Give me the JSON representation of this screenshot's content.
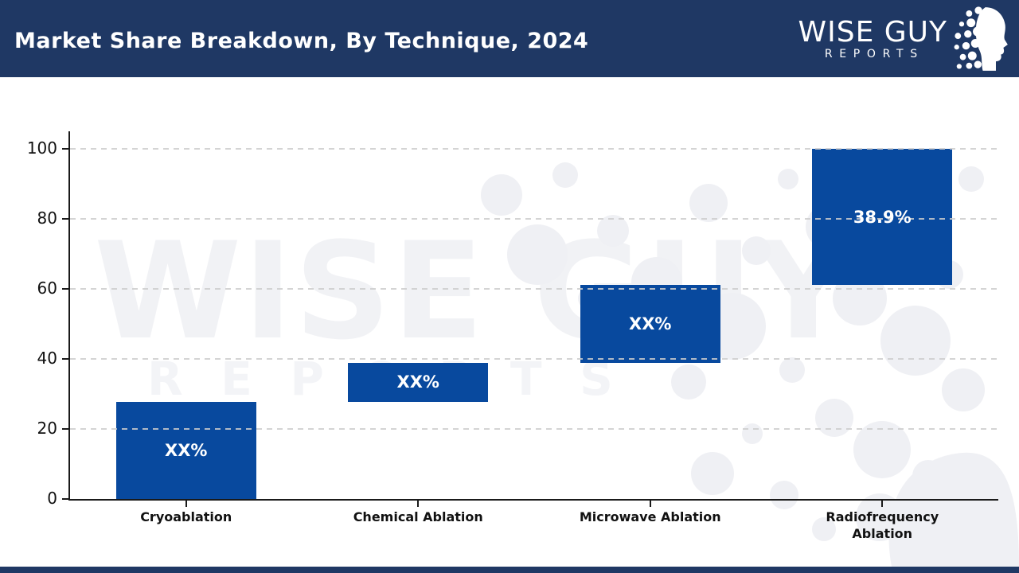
{
  "header": {
    "title": "Market Share Breakdown, By Technique, 2024",
    "logo": {
      "name": "WISE GUY",
      "sub": "REPORTS"
    }
  },
  "watermark": {
    "name": "WISE GUY",
    "sub": "REPORTS"
  },
  "colors": {
    "header_bg": "#1f3864",
    "footer_bg": "#1f3864",
    "bar": "#08499e",
    "grid": "#d6d6d6",
    "axis": "#1a1a1a",
    "bar_label_text": "#ffffff",
    "watermark": "#f1f2f5"
  },
  "chart_data": {
    "type": "bar",
    "subtype": "waterfall",
    "title": "Market Share Breakdown, By Technique, 2024",
    "categories": [
      "Cryoablation",
      "Chemical Ablation",
      "Microwave Ablation",
      "Radiofrequency Ablation"
    ],
    "bars": [
      {
        "category": "Cryoablation",
        "start": 0,
        "end": 27.8,
        "label": "XX%"
      },
      {
        "category": "Chemical Ablation",
        "start": 27.8,
        "end": 38.9,
        "label": "XX%"
      },
      {
        "category": "Microwave Ablation",
        "start": 38.9,
        "end": 61.1,
        "label": "XX%"
      },
      {
        "category": "Radiofrequency Ablation",
        "start": 61.1,
        "end": 100,
        "label": "38.9%"
      }
    ],
    "yticks": [
      0,
      20,
      40,
      60,
      80,
      100
    ],
    "ylim": [
      0,
      104
    ],
    "grid": "horizontal-dashed",
    "legend": null
  }
}
